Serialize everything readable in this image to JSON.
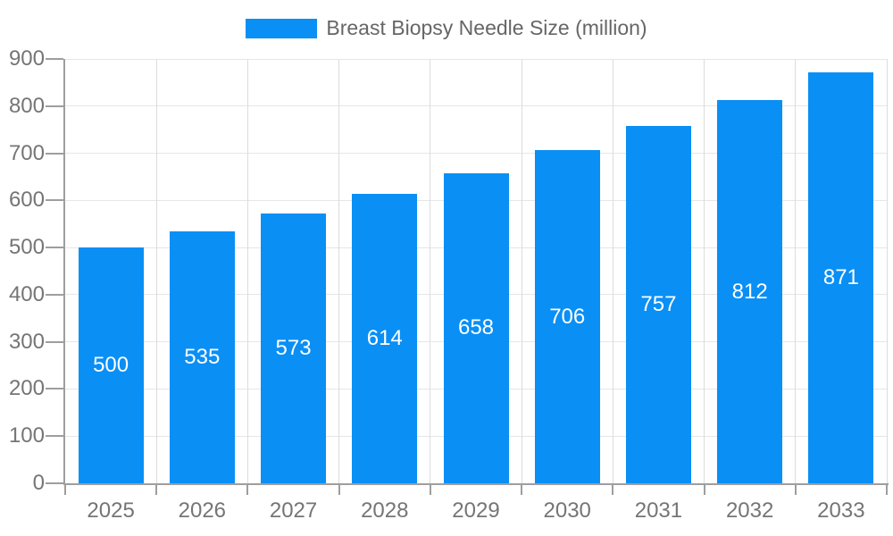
{
  "chart_data": {
    "type": "bar",
    "title": "Breast Biopsy Needle Size (million)",
    "legend": {
      "position": "top",
      "label": "Breast Biopsy Needle Size (million)"
    },
    "categories": [
      "2025",
      "2026",
      "2027",
      "2028",
      "2029",
      "2030",
      "2031",
      "2032",
      "2033"
    ],
    "series": [
      {
        "name": "Breast Biopsy Needle Size (million)",
        "values": [
          500,
          535,
          573,
          614,
          658,
          706,
          757,
          812,
          871
        ]
      }
    ],
    "xlabel": "",
    "ylabel": "",
    "ylim": [
      0,
      900
    ],
    "yticks": [
      0,
      100,
      200,
      300,
      400,
      500,
      600,
      700,
      800,
      900
    ],
    "grid": true,
    "value_labels": "inside-center"
  },
  "colors": {
    "bar": "#0a8ff5",
    "value_label": "#ffffff",
    "axis": "#9e9e9e",
    "grid_horizontal": "#e6e6e6",
    "grid_vertical": "#dcdcdc",
    "tick_label": "#757575",
    "legend_text": "#666666",
    "background": "#ffffff"
  }
}
